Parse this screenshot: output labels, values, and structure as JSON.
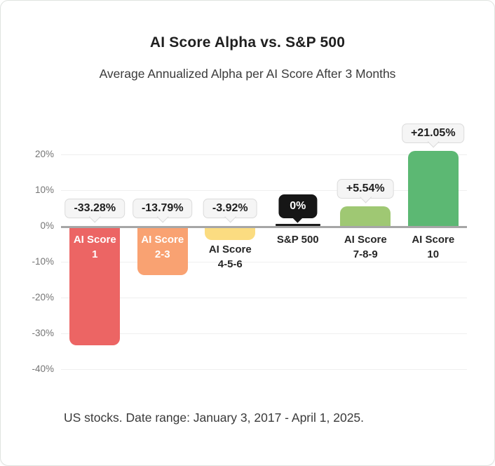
{
  "card": {
    "title": "AI Score Alpha vs. S&P 500",
    "subtitle": "Average Annualized Alpha per AI Score After 3 Months",
    "footnote": "US stocks. Date range: January 3, 2017 - April 1, 2025."
  },
  "colors": {
    "card_background": "#ffffff",
    "card_border": "#dfe3e0",
    "gridline": "#efefef",
    "zero_line": "#a6a6a6",
    "axis_tick_text": "#757575",
    "tooltip_light_bg": "#f5f5f5",
    "tooltip_light_border": "#dbdbdb",
    "tooltip_dark_bg": "#161616",
    "dark_text": "#1f1f1f"
  },
  "chart_data": {
    "type": "bar",
    "title": "AI Score Alpha vs. S&P 500",
    "subtitle": "Average Annualized Alpha per AI Score After 3 Months",
    "categories": [
      "AI Score 1",
      "AI Score 2-3",
      "AI Score 4-5-6",
      "S&P 500",
      "AI Score 7-8-9",
      "AI Score 10"
    ],
    "values": [
      -33.28,
      -13.79,
      -3.92,
      0,
      5.54,
      21.05
    ],
    "value_labels": [
      "-33.28%",
      "-13.79%",
      "-3.92%",
      "0%",
      "+5.54%",
      "+21.05%"
    ],
    "bar_colors": [
      "#ec6564",
      "#f9a272",
      "#fbdc81",
      "#1c1c1c",
      "#9fc873",
      "#5cb873"
    ],
    "category_label_lines": [
      [
        "AI Score",
        "1"
      ],
      [
        "AI Score",
        "2-3"
      ],
      [
        "AI Score",
        "4-5-6"
      ],
      [
        "S&P 500"
      ],
      [
        "AI Score",
        "7-8-9"
      ],
      [
        "AI Score",
        "10"
      ]
    ],
    "category_label_placement": [
      "inside",
      "inside",
      "below-bar",
      "below-axis",
      "below-axis",
      "below-axis"
    ],
    "tooltip_styles": [
      "light",
      "light",
      "light",
      "dark",
      "light",
      "light"
    ],
    "y_ticks": [
      "20%",
      "10%",
      "0%",
      "-10%",
      "-20%",
      "-30%",
      "-40%"
    ],
    "y_tick_values": [
      20,
      10,
      0,
      -10,
      -20,
      -30,
      -40
    ],
    "ylim": [
      -40,
      25
    ],
    "xlabel": "",
    "ylabel": "",
    "grid": true,
    "legend": false
  }
}
